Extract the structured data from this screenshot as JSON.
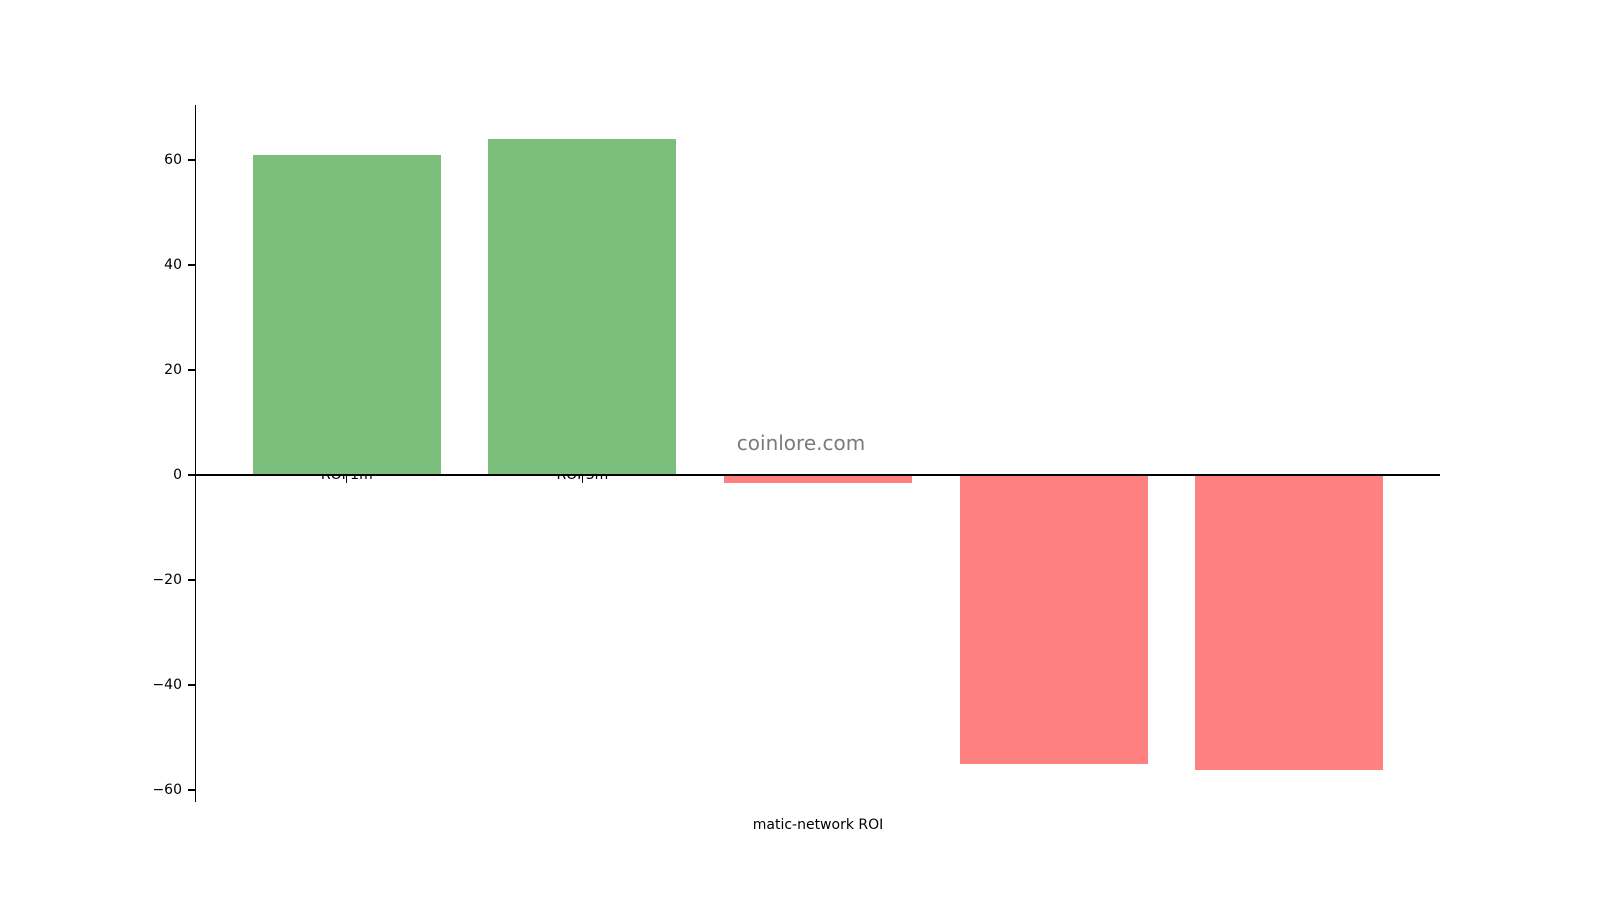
{
  "watermark": {
    "text": "coinlore.com",
    "color": "#7b7b7b"
  },
  "chart_data": {
    "type": "bar",
    "title": "",
    "xlabel": "matic-network ROI",
    "ylabel": "",
    "categories": [
      "ROI 1m",
      "ROI 3m",
      "",
      "",
      ""
    ],
    "values": [
      61,
      64,
      -1.4,
      -55,
      -56
    ],
    "bar_colors": [
      "#7cbf7c",
      "#7cbf7c",
      "#ff8080",
      "#ff8080",
      "#ff8080"
    ],
    "positive_color": "#7cbf7c",
    "negative_color": "#ff8080",
    "yticks": [
      60,
      40,
      20,
      0,
      -20,
      -40,
      -60
    ],
    "ytick_labels": [
      "60",
      "40",
      "20",
      "0",
      "−20",
      "−40",
      "−60"
    ],
    "ylim": [
      -62.3,
      70.5
    ],
    "grid": false,
    "legend": "none",
    "background": "#ffffff",
    "axis_color": "#000000"
  }
}
